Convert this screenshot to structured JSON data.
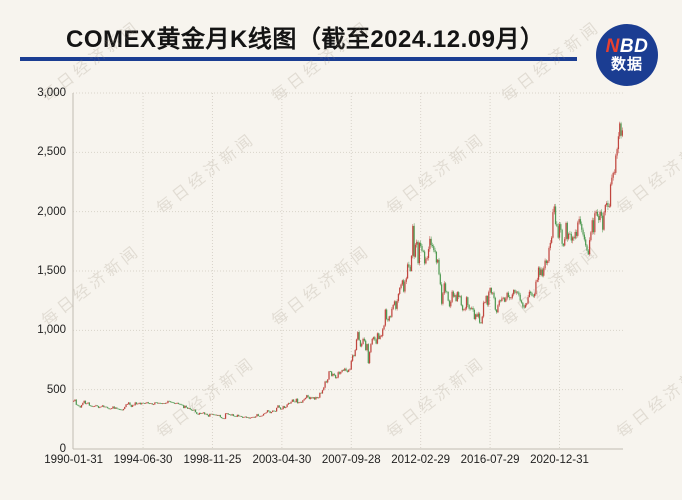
{
  "header": {
    "title": "COMEX黄金月K线图（截至2024.12.09月）",
    "divider_color": "#1b3d92"
  },
  "logo": {
    "n": "N",
    "bd": "BD",
    "line2": "数据",
    "bg_color": "#1b3d92",
    "n_color": "#e8402f"
  },
  "watermark": {
    "text": "每日经济新闻"
  },
  "chart_data": {
    "type": "candlestick",
    "title": "COMEX黄金月K线图（截至2024.12.09月）",
    "frequency": "monthly",
    "x_start": "1990-01",
    "x_end": "2024-12",
    "ylim": [
      0,
      3000
    ],
    "grid": "dotted",
    "y_ticks": [
      {
        "value": 3000,
        "label": "3,000"
      },
      {
        "value": 2500,
        "label": "2,500"
      },
      {
        "value": 2000,
        "label": "2,000"
      },
      {
        "value": 1500,
        "label": "1,500"
      },
      {
        "value": 1000,
        "label": "1,000"
      },
      {
        "value": 500,
        "label": "500"
      },
      {
        "value": 0,
        "label": "0"
      }
    ],
    "x_ticks": [
      {
        "label": "1990-01-31",
        "month_index": 0
      },
      {
        "label": "1994-06-30",
        "month_index": 53
      },
      {
        "label": "1998-11-25",
        "month_index": 106
      },
      {
        "label": "2003-04-30",
        "month_index": 159
      },
      {
        "label": "2007-09-28",
        "month_index": 212
      },
      {
        "label": "2012-02-29",
        "month_index": 265
      },
      {
        "label": "2016-07-29",
        "month_index": 318
      },
      {
        "label": "2020-12-31",
        "month_index": 371
      }
    ],
    "colors": {
      "up": "#c0453e",
      "down": "#4f9a52",
      "grid": "#d8d3ca",
      "axis": "#c2bdb3"
    },
    "start_year": 1990,
    "first_open": 402,
    "monthly_closes_by_year": [
      [
        405,
        416,
        372,
        368,
        362,
        350,
        370,
        388,
        406,
        380,
        383,
        391
      ],
      [
        366,
        363,
        356,
        357,
        361,
        368,
        362,
        347,
        354,
        357,
        366,
        353
      ],
      [
        354,
        353,
        344,
        337,
        337,
        343,
        358,
        340,
        349,
        339,
        335,
        333
      ],
      [
        330,
        327,
        337,
        354,
        375,
        378,
        392,
        371,
        355,
        369,
        370,
        392
      ],
      [
        378,
        382,
        389,
        377,
        387,
        386,
        384,
        386,
        394,
        384,
        383,
        384
      ],
      [
        375,
        376,
        392,
        390,
        385,
        387,
        383,
        382,
        384,
        382,
        387,
        387
      ],
      [
        405,
        400,
        396,
        391,
        390,
        382,
        385,
        387,
        379,
        378,
        371,
        369
      ],
      [
        345,
        364,
        351,
        340,
        345,
        334,
        326,
        325,
        332,
        311,
        296,
        290
      ],
      [
        304,
        297,
        301,
        308,
        293,
        296,
        286,
        273,
        296,
        292,
        294,
        288
      ],
      [
        285,
        287,
        280,
        286,
        268,
        261,
        255,
        255,
        299,
        300,
        291,
        290
      ],
      [
        283,
        293,
        278,
        275,
        272,
        288,
        276,
        277,
        273,
        264,
        269,
        272
      ],
      [
        264,
        266,
        257,
        263,
        265,
        270,
        265,
        274,
        293,
        278,
        274,
        277
      ],
      [
        282,
        296,
        301,
        308,
        326,
        318,
        303,
        312,
        323,
        318,
        317,
        347
      ],
      [
        367,
        350,
        334,
        336,
        361,
        346,
        354,
        375,
        386,
        384,
        398,
        416
      ],
      [
        399,
        395,
        423,
        387,
        393,
        395,
        391,
        410,
        420,
        429,
        453,
        438
      ],
      [
        422,
        435,
        428,
        435,
        418,
        437,
        429,
        433,
        472,
        470,
        495,
        517
      ],
      [
        569,
        561,
        586,
        654,
        653,
        616,
        633,
        623,
        599,
        603,
        647,
        635
      ],
      [
        650,
        665,
        661,
        677,
        659,
        650,
        665,
        672,
        743,
        789,
        783,
        834
      ],
      [
        923,
        985,
        916,
        865,
        885,
        928,
        913,
        833,
        884,
        724,
        816,
        884
      ],
      [
        928,
        942,
        922,
        888,
        975,
        927,
        953,
        953,
        1008,
        1040,
        1175,
        1096
      ],
      [
        1083,
        1118,
        1114,
        1180,
        1215,
        1244,
        1181,
        1248,
        1307,
        1357,
        1386,
        1421
      ],
      [
        1327,
        1409,
        1438,
        1556,
        1536,
        1500,
        1628,
        1880,
        1620,
        1722,
        1746,
        1566
      ],
      [
        1737,
        1711,
        1669,
        1664,
        1564,
        1604,
        1610,
        1685,
        1771,
        1719,
        1710,
        1676
      ],
      [
        1660,
        1572,
        1595,
        1472,
        1387,
        1224,
        1312,
        1396,
        1327,
        1323,
        1250,
        1202
      ],
      [
        1240,
        1326,
        1284,
        1296,
        1246,
        1322,
        1281,
        1287,
        1211,
        1171,
        1175,
        1184
      ],
      [
        1279,
        1213,
        1183,
        1182,
        1189,
        1172,
        1095,
        1135,
        1115,
        1141,
        1065,
        1060
      ],
      [
        1116,
        1234,
        1234,
        1290,
        1215,
        1321,
        1357,
        1311,
        1317,
        1273,
        1174,
        1152
      ],
      [
        1211,
        1251,
        1247,
        1268,
        1275,
        1242,
        1268,
        1316,
        1281,
        1271,
        1275,
        1303
      ],
      [
        1340,
        1318,
        1325,
        1319,
        1300,
        1251,
        1233,
        1201,
        1192,
        1215,
        1226,
        1281
      ],
      [
        1325,
        1313,
        1292,
        1286,
        1306,
        1410,
        1426,
        1529,
        1466,
        1513,
        1460,
        1523
      ],
      [
        1588,
        1567,
        1583,
        1694,
        1737,
        1781,
        1996,
        2044,
        1896,
        1878,
        1781,
        1895
      ],
      [
        1847,
        1729,
        1714,
        1768,
        1905,
        1771,
        1814,
        1812,
        1757,
        1784,
        1775,
        1829
      ],
      [
        1796,
        1909,
        1937,
        1897,
        1848,
        1807,
        1766,
        1716,
        1672,
        1641,
        1760,
        1826
      ],
      [
        1928,
        1827,
        1986,
        1999,
        1964,
        1929,
        1999,
        1966,
        1848,
        1994,
        2057,
        2072
      ],
      [
        2040,
        2044,
        2230,
        2286,
        2327,
        2327,
        2473,
        2527,
        2635,
        2744,
        2640,
        2685
      ]
    ]
  }
}
